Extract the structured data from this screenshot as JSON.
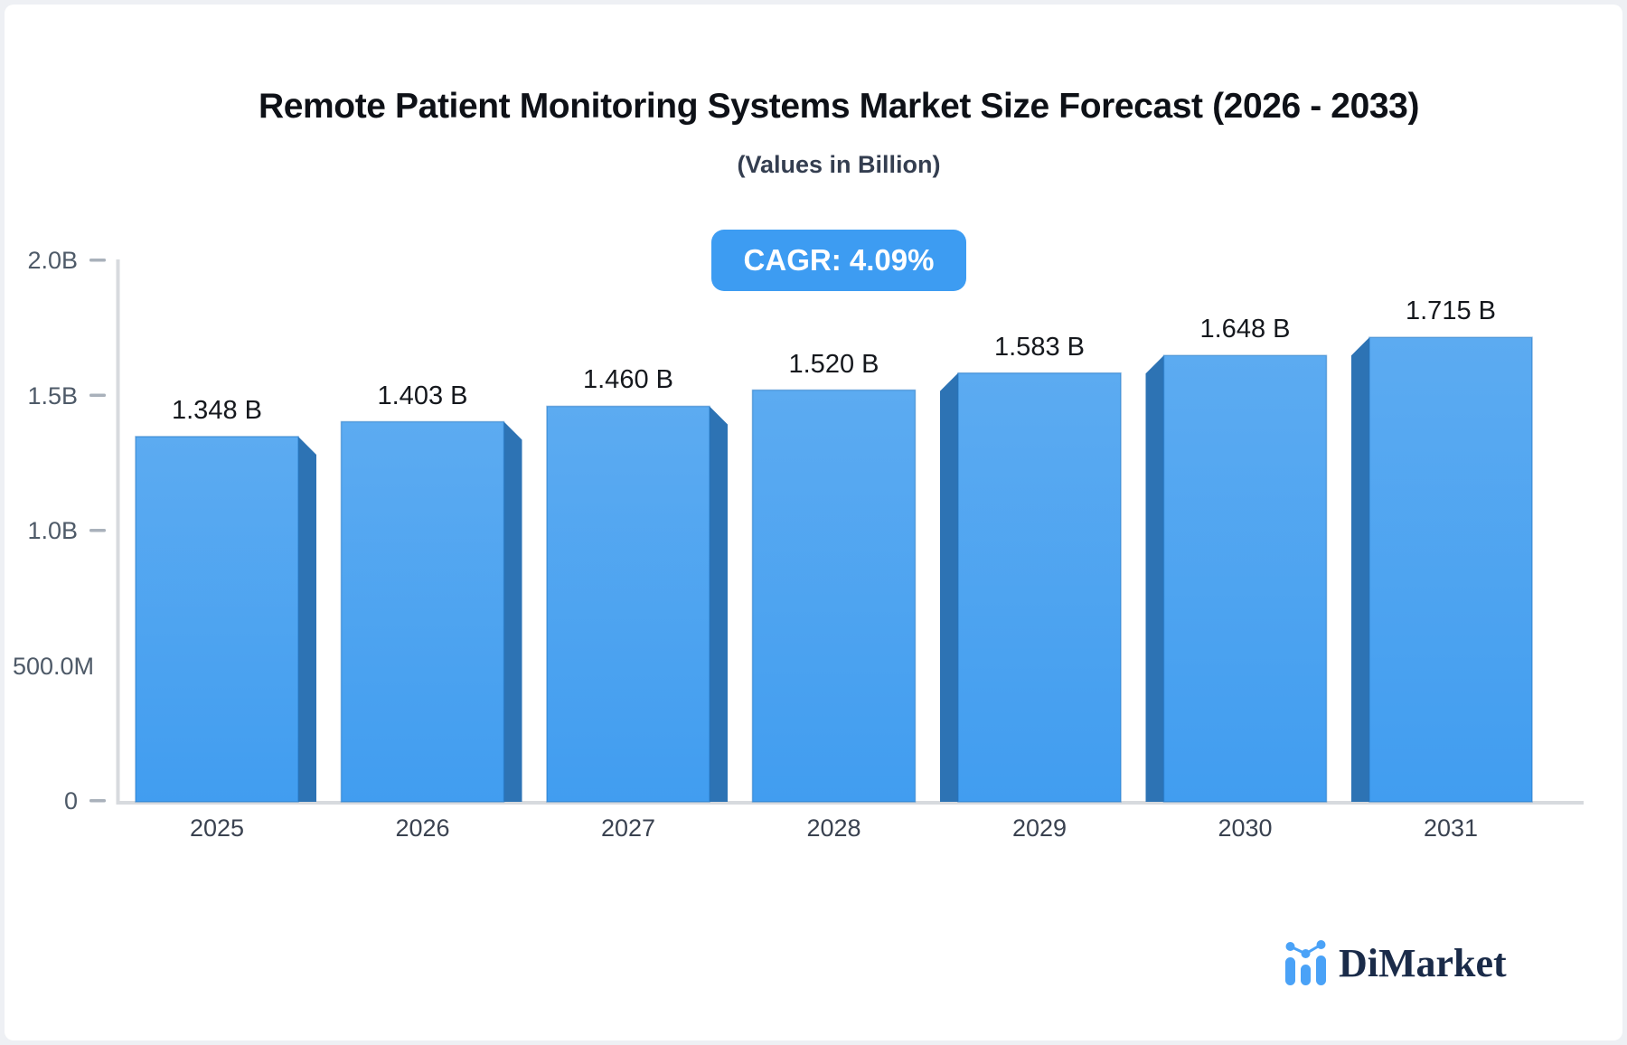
{
  "header": {
    "title": "Remote Patient Monitoring Systems Market Size Forecast (2026 - 2033)",
    "subtitle": "(Values in Billion)"
  },
  "badge": {
    "label": "CAGR: 4.09%",
    "cagr_percent": 4.09,
    "background": "#3d9cf2",
    "text_color": "#ffffff"
  },
  "chart_data": {
    "type": "bar",
    "title": "Remote Patient Monitoring Systems Market Size Forecast (2026 - 2033)",
    "subtitle": "(Values in Billion)",
    "unit": "Billion",
    "categories": [
      "2025",
      "2026",
      "2027",
      "2028",
      "2029",
      "2030",
      "2031"
    ],
    "values": [
      1.348,
      1.403,
      1.46,
      1.52,
      1.583,
      1.648,
      1.715
    ],
    "value_labels": [
      "1.348 B",
      "1.403 B",
      "1.460 B",
      "1.520 B",
      "1.583 B",
      "1.648 B",
      "1.715 B"
    ],
    "xlabel": "",
    "ylabel": "",
    "ylim": [
      0,
      2.0
    ],
    "yticks": [
      {
        "label": "2.0B",
        "value": 2.0,
        "dash": true
      },
      {
        "label": "1.5B",
        "value": 1.5,
        "dash": true
      },
      {
        "label": "1.0B",
        "value": 1.0,
        "dash": true
      },
      {
        "label": "500.0M",
        "value": 0.5,
        "dash": false
      },
      {
        "label": "0",
        "value": 0.0,
        "dash": true
      }
    ],
    "grid": false,
    "legend": "none",
    "bar_style": "3d-perspective-center",
    "colors": {
      "bar_face_top": "#5cabf1",
      "bar_face_bottom": "#419df0",
      "bar_face_edge": "rgba(31,115,193,0.5)",
      "bar_side": "#2d73b4",
      "axis_line": "#d7dade",
      "tick": "#a9b1bb",
      "value_label": "#15181d",
      "axis_label": "#4e5a68",
      "category_label": "#3a4250"
    }
  },
  "logo": {
    "text": "DiMarket",
    "icon": "mini-bar-chart-logo-icon",
    "text_color": "#1a2b49",
    "icon_color": "#4aa2f7"
  }
}
